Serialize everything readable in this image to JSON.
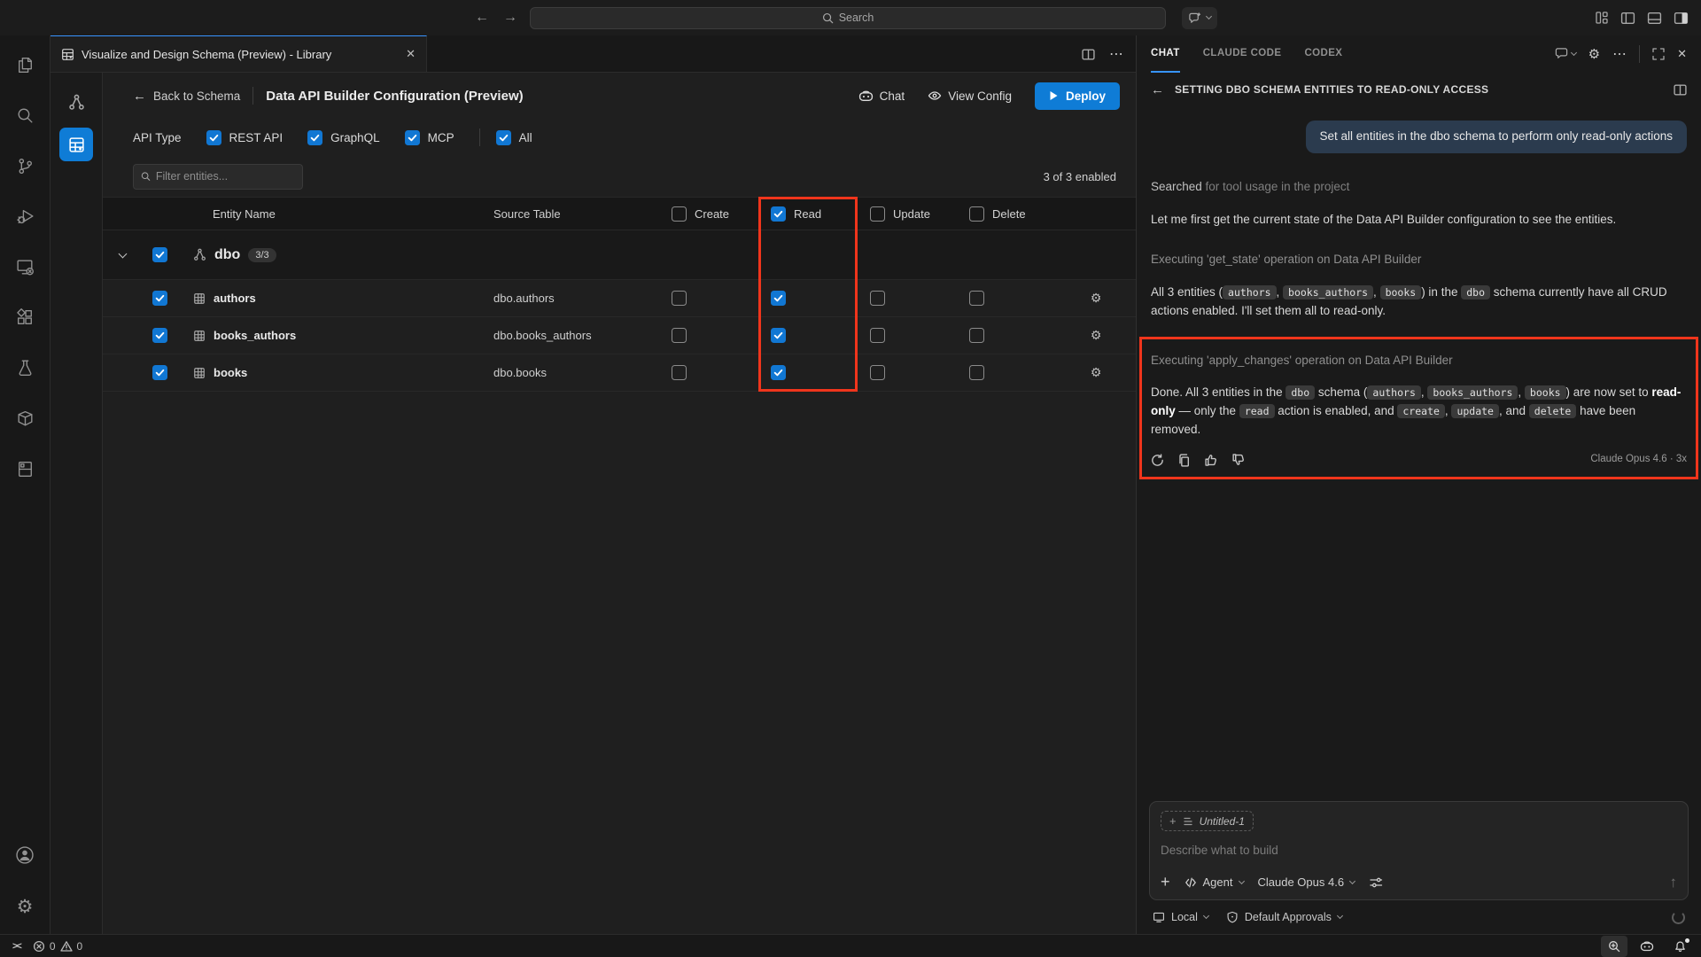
{
  "titlebar": {
    "search_placeholder": "Search"
  },
  "editor": {
    "tab": {
      "title": "Visualize and Design Schema (Preview) - Library"
    },
    "header": {
      "back_label": "Back to Schema",
      "title": "Data API Builder Configuration (Preview)",
      "chat_label": "Chat",
      "view_config_label": "View Config",
      "deploy_label": "Deploy"
    },
    "api_type": {
      "label": "API Type",
      "options": [
        {
          "label": "REST API",
          "checked": true
        },
        {
          "label": "GraphQL",
          "checked": true
        },
        {
          "label": "MCP",
          "checked": true
        }
      ],
      "all": {
        "label": "All",
        "checked": true
      }
    },
    "filter": {
      "placeholder": "Filter entities...",
      "summary": "3 of 3 enabled"
    },
    "table": {
      "columns": {
        "entity": "Entity Name",
        "source": "Source Table",
        "create": "Create",
        "read": "Read",
        "update": "Update",
        "delete": "Delete"
      },
      "header_checks": {
        "create": false,
        "read": true,
        "update": false,
        "delete": false
      },
      "group": {
        "name": "dbo",
        "badge": "3/3",
        "checked": true
      },
      "rows": [
        {
          "name": "authors",
          "source": "dbo.authors",
          "checked": true,
          "create": false,
          "read": true,
          "update": false,
          "delete": false
        },
        {
          "name": "books_authors",
          "source": "dbo.books_authors",
          "checked": true,
          "create": false,
          "read": true,
          "update": false,
          "delete": false
        },
        {
          "name": "books",
          "source": "dbo.books",
          "checked": true,
          "create": false,
          "read": true,
          "update": false,
          "delete": false
        }
      ]
    }
  },
  "chat": {
    "tabs": [
      {
        "label": "CHAT",
        "active": true
      },
      {
        "label": "CLAUDE CODE",
        "active": false
      },
      {
        "label": "CODEX",
        "active": false
      }
    ],
    "session_title": "SETTING DBO SCHEMA ENTITIES TO READ-ONLY ACCESS",
    "user_message": "Set all entities in the dbo schema to perform only read-only actions",
    "searched_strong": "Searched",
    "searched_rest": " for tool usage in the project",
    "para1": "Let me first get the current state of the Data API Builder configuration to see the entities.",
    "exec1": "Executing 'get_state' operation on Data API Builder",
    "para2": [
      {
        "t": "All 3 entities ("
      },
      {
        "c": "authors"
      },
      {
        "t": ", "
      },
      {
        "c": "books_authors"
      },
      {
        "t": ", "
      },
      {
        "c": "books"
      },
      {
        "t": ") in the "
      },
      {
        "c": "dbo"
      },
      {
        "t": " schema currently have all CRUD actions enabled. I'll set them all to read-only."
      }
    ],
    "exec2": "Executing 'apply_changes' operation on Data API Builder",
    "para3": [
      {
        "t": "Done. All 3 entities in the "
      },
      {
        "c": "dbo"
      },
      {
        "t": " schema ("
      },
      {
        "c": "authors"
      },
      {
        "t": ", "
      },
      {
        "c": "books_authors"
      },
      {
        "t": ", "
      },
      {
        "c": "books"
      },
      {
        "t": ") are now set to "
      },
      {
        "b": "read-only"
      },
      {
        "t": " — only the "
      },
      {
        "c": "read"
      },
      {
        "t": " action is enabled, and "
      },
      {
        "c": "create"
      },
      {
        "t": ", "
      },
      {
        "c": "update"
      },
      {
        "t": ", and "
      },
      {
        "c": "delete"
      },
      {
        "t": " have been removed."
      }
    ],
    "meta": "Claude Opus 4.6 · 3x",
    "input": {
      "chip_label": "Untitled-1",
      "placeholder": "Describe what to build",
      "mode_label": "Agent",
      "model_label": "Claude Opus 4.6"
    },
    "footer": {
      "env_label": "Local",
      "approvals_label": "Default Approvals"
    }
  },
  "status_bar": {
    "errors": "0",
    "warnings": "0"
  },
  "icons": {
    "accent_blue": "#0f7cd6",
    "annotation_red": "#f0351c",
    "search-icon": "magnifier",
    "gear-icon": "⚙",
    "ellipsis-icon": "⋯",
    "close-icon": "✕",
    "back-arrow-icon": "←",
    "send-icon": "↑"
  }
}
